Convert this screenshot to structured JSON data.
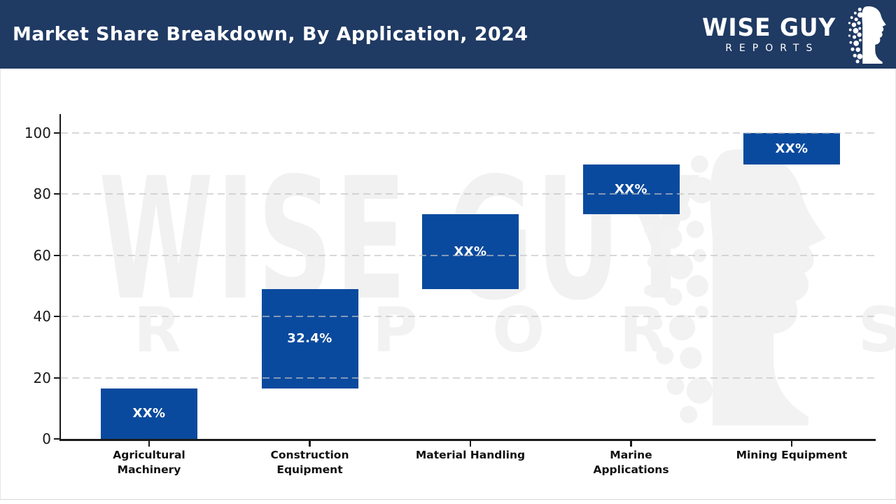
{
  "header": {
    "title": "Market Share Breakdown, By Application, 2024",
    "bg_color": "#1f3a63",
    "logo": {
      "line1": "WISE GUY",
      "line2": "REPORTS",
      "icon": "dotted-head-profile-icon",
      "color": "#ffffff"
    }
  },
  "watermark": {
    "line1": "WISE GUY",
    "line2": "R E P O R T S",
    "icon": "dotted-head-profile-icon",
    "color": "#f1f1f1"
  },
  "chart_data": {
    "type": "bar",
    "subtype": "waterfall",
    "title": "Market Share Breakdown, By Application, 2024",
    "categories": [
      "Agricultural Machinery",
      "Construction Equipment",
      "Material Handling",
      "Marine Applications",
      "Mining Equipment"
    ],
    "category_display": [
      "Agricultural\nMachinery",
      "Construction\nEquipment",
      "Material Handling",
      "Marine\nApplications",
      "Mining Equipment"
    ],
    "series": [
      {
        "name": "Market Share (%)",
        "segments": [
          [
            0,
            16.5
          ],
          [
            16.5,
            48.9
          ],
          [
            48.9,
            73.3
          ],
          [
            73.3,
            89.5
          ],
          [
            89.5,
            100
          ]
        ]
      }
    ],
    "bar_value_labels": [
      "XX%",
      "32.4%",
      "XX%",
      "XX%",
      "XX%"
    ],
    "xlabel": "",
    "ylabel": "",
    "yticks": [
      0,
      20,
      40,
      60,
      80,
      100
    ],
    "ylim": [
      0,
      105.7
    ],
    "grid": true,
    "grid_style": "dashed",
    "legend": "none",
    "bar_color": "#0a4a9e",
    "label_color": "#ffffff",
    "axis_color": "#1a1a1a",
    "grid_color": "#c9c9c9"
  }
}
